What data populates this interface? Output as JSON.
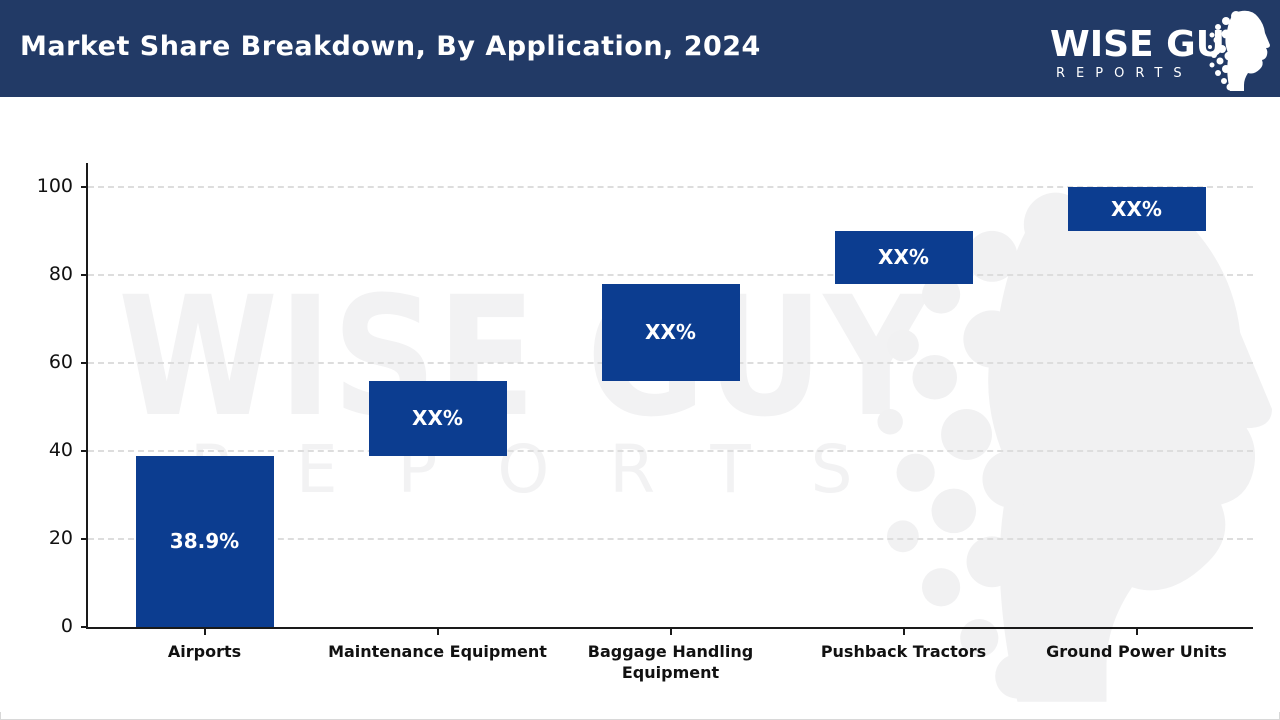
{
  "header": {
    "title": "Market Share Breakdown, By Application, 2024",
    "logo": {
      "brand": "WISE GUY",
      "sub": "REPORTS",
      "head_icon": "dotted-face-profile"
    }
  },
  "watermark": {
    "brand": "WISE GUY",
    "sub": "REPORTS",
    "head_icon": "dotted-face-profile"
  },
  "colors": {
    "header_bg": "#223a66",
    "bar": "#0c3d90",
    "bar_label": "#ffffff",
    "grid": "#dddddd",
    "axis": "#1a1a1a",
    "tick_label": "#111111",
    "watermark": "#f2f2f3"
  },
  "chart_data": {
    "type": "bar",
    "subtype": "waterfall",
    "title": "Market Share Breakdown, By Application, 2024",
    "categories": [
      "Airports",
      "Maintenance Equipment",
      "Baggage Handling Equipment",
      "Pushback Tractors",
      "Ground Power Units"
    ],
    "segments": [
      {
        "category": "Airports",
        "start": 0,
        "end": 38.9,
        "label": "38.9%"
      },
      {
        "category": "Maintenance Equipment",
        "start": 38.9,
        "end": 56,
        "label": "XX%"
      },
      {
        "category": "Baggage Handling Equipment",
        "start": 56,
        "end": 78,
        "label": "XX%"
      },
      {
        "category": "Pushback Tractors",
        "start": 78,
        "end": 90,
        "label": "XX%"
      },
      {
        "category": "Ground Power Units",
        "start": 90,
        "end": 100,
        "label": "XX%"
      }
    ],
    "xlabel": "",
    "ylabel": "",
    "yticks": [
      0,
      20,
      40,
      60,
      80,
      100
    ],
    "ylim": [
      0,
      105.5
    ],
    "grid": "horizontal-dashed",
    "legend": "none",
    "bar_color": "#0c3d90"
  }
}
